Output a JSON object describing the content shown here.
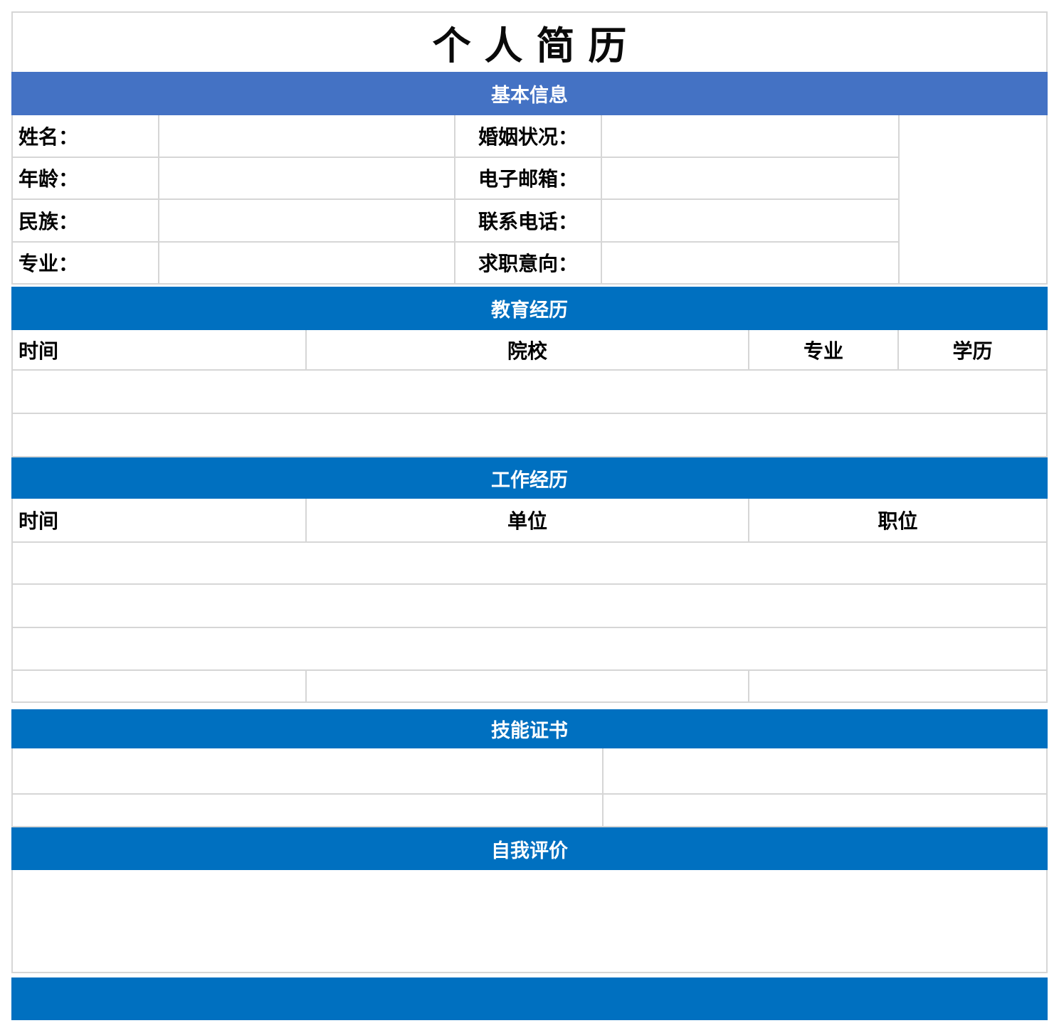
{
  "title": "个人简历",
  "colors": {
    "primary_header": "#4472C4",
    "accent_header": "#0070C0",
    "gridline": "#d6d6d6",
    "header_text": "#ffffff"
  },
  "basic_info": {
    "heading": "基本信息",
    "rows": [
      {
        "left_label": "姓名：",
        "left_value": "",
        "right_label": "婚姻状况：",
        "right_value": ""
      },
      {
        "left_label": "年龄：",
        "left_value": "",
        "right_label": "电子邮箱：",
        "right_value": ""
      },
      {
        "left_label": "民族：",
        "left_value": "",
        "right_label": "联系电话：",
        "right_value": ""
      },
      {
        "left_label": "专业：",
        "left_value": "",
        "right_label": "求职意向：",
        "right_value": ""
      }
    ],
    "photo_value": ""
  },
  "education": {
    "heading": "教育经历",
    "columns": [
      "时间",
      "院校",
      "专业",
      "学历"
    ],
    "rows": [
      {
        "time": "",
        "school": "",
        "major": "",
        "degree": ""
      },
      {
        "time": "",
        "school": "",
        "major": "",
        "degree": ""
      }
    ]
  },
  "work": {
    "heading": "工作经历",
    "columns": [
      "时间",
      "单位",
      "职位"
    ],
    "rows": [
      {
        "time": "",
        "unit": "",
        "position": ""
      },
      {
        "time": "",
        "unit": "",
        "position": ""
      },
      {
        "time": "",
        "unit": "",
        "position": ""
      },
      {
        "time": "",
        "unit": "",
        "position": ""
      }
    ]
  },
  "certificates": {
    "heading": "技能证书",
    "rows": [
      {
        "left": "",
        "right": ""
      },
      {
        "left": "",
        "right": ""
      }
    ]
  },
  "self_evaluation": {
    "heading": "自我评价",
    "content": ""
  },
  "footer": {
    "content": ""
  }
}
